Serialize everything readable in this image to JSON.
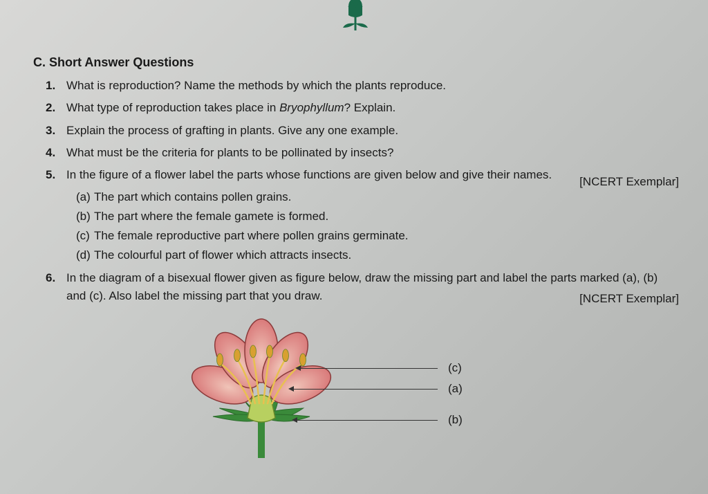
{
  "section": {
    "letter": "C.",
    "title": "Short Answer Questions"
  },
  "questions": [
    {
      "num": "1.",
      "text": "What is reproduction? Name the methods by which the plants reproduce."
    },
    {
      "num": "2.",
      "text_before": "What type of reproduction takes place in ",
      "italic": "Bryophyllum",
      "text_after": "? Explain."
    },
    {
      "num": "3.",
      "text": "Explain the process of grafting in plants. Give any one example."
    },
    {
      "num": "4.",
      "text": "What must be the criteria for plants to be pollinated by insects?"
    },
    {
      "num": "5.",
      "text": "In the figure of a flower label the parts whose functions are given below and give their names.",
      "sub": [
        {
          "letter": "(a)",
          "text": "The part which contains pollen grains."
        },
        {
          "letter": "(b)",
          "text": "The part where the female gamete is formed."
        },
        {
          "letter": "(c)",
          "text": "The female reproductive part where pollen grains germinate."
        },
        {
          "letter": "(d)",
          "text": "The colourful part of flower which attracts insects."
        }
      ]
    },
    {
      "num": "6.",
      "text": "In the diagram of a bisexual flower given as figure below, draw the missing part and label the parts marked (a), (b) and (c). Also label the missing part that you draw."
    }
  ],
  "exemplar": "[NCERT Exemplar]",
  "diagram": {
    "labels": {
      "c": "(c)",
      "a": "(a)",
      "b": "(b)"
    },
    "colors": {
      "petal_outer": "#d97a7a",
      "petal_inner": "#f0c4b8",
      "petal_stroke": "#8a3a3a",
      "sepal": "#3a8a3a",
      "sepal_dark": "#2a6a2a",
      "stem": "#3a8a3a",
      "filament": "#e8c050",
      "anther": "#d8a030",
      "ovary": "#b8d060",
      "ovary_stroke": "#6a8a2a"
    }
  },
  "top_flower_color": "#1a6a4a"
}
